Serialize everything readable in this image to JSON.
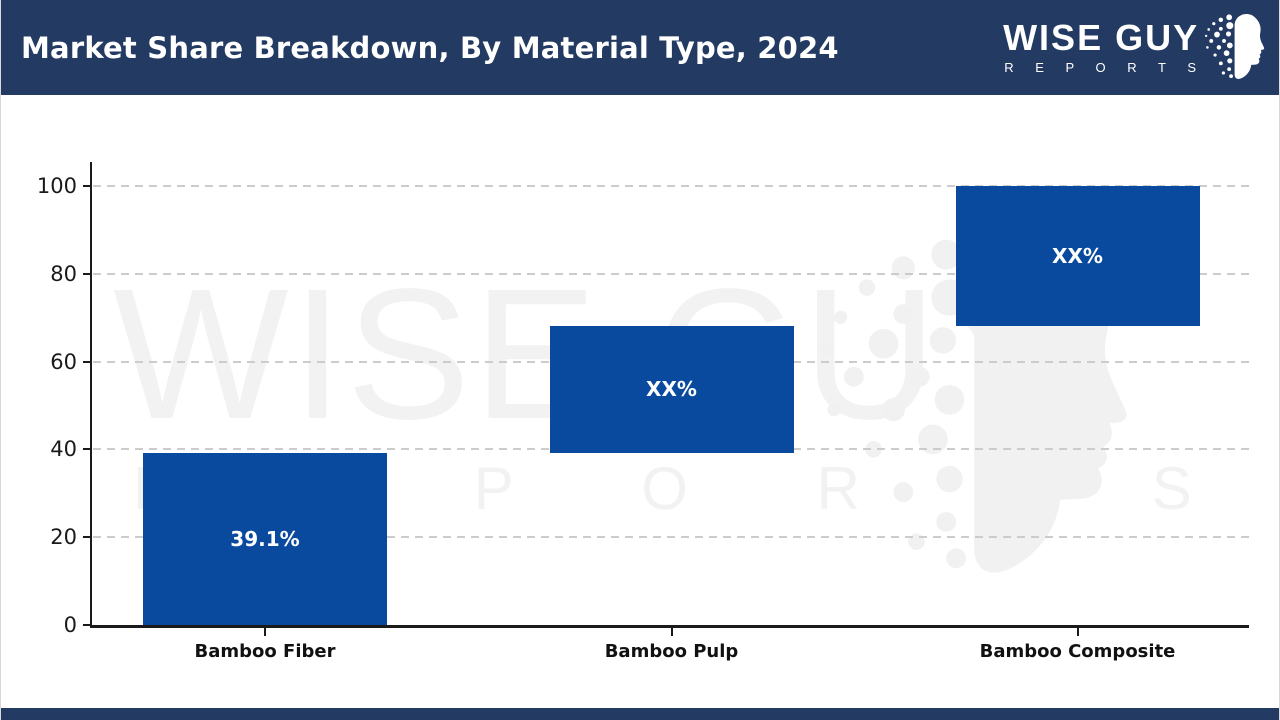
{
  "header": {
    "title": "Market Share Breakdown, By Material Type, 2024",
    "bg_color": "#233a63",
    "logo": {
      "wordmark": "WISE GUY",
      "subtitle": "R E P O R T S",
      "face_icon": "dotted-face-profile"
    }
  },
  "watermark": {
    "line1": "WISE GUY",
    "line2": "R E P O R T S"
  },
  "chart_data": {
    "type": "bar",
    "subtype": "waterfall",
    "title": "Market Share Breakdown, By Material Type, 2024",
    "categories": [
      "Bamboo Fiber",
      "Bamboo Pulp",
      "Bamboo Composite"
    ],
    "segments": [
      {
        "category": "Bamboo Fiber",
        "start": 0,
        "end": 39.1,
        "label": "39.1%"
      },
      {
        "category": "Bamboo Pulp",
        "start": 39.1,
        "end": 68.2,
        "label": "XX%"
      },
      {
        "category": "Bamboo Composite",
        "start": 68.2,
        "end": 100,
        "label": "XX%"
      }
    ],
    "yticks": [
      0,
      20,
      40,
      60,
      80,
      100
    ],
    "ylim": [
      0,
      105
    ],
    "xlabel": "",
    "ylabel": "",
    "grid": "horizontal-dashed",
    "legend": "none",
    "bar_color": "#0a4a9e",
    "bar_label_color": "#ffffff",
    "axis_color": "#1a1a1a",
    "grid_color": "#cccccc"
  },
  "footer": {
    "bg_color": "#233a63"
  }
}
